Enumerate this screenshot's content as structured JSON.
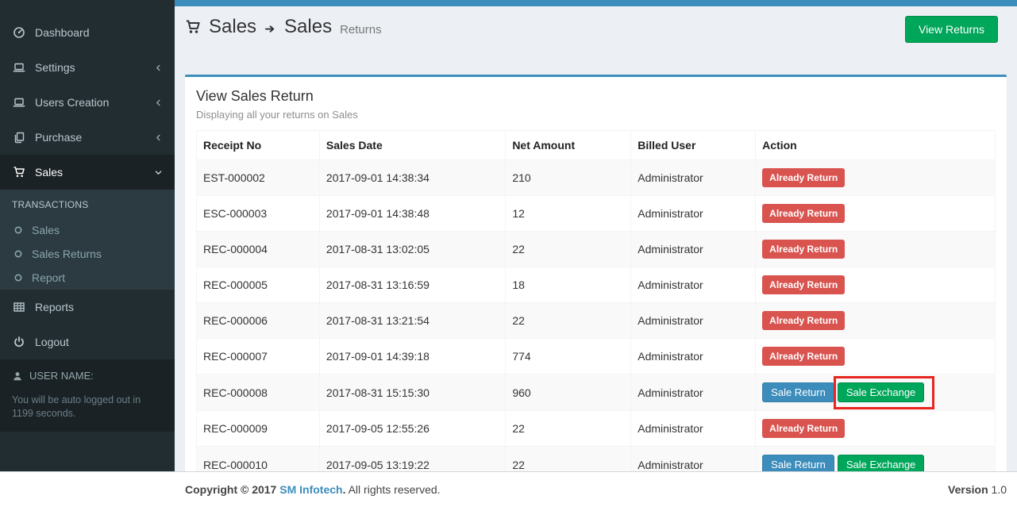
{
  "sidebar": {
    "items": [
      {
        "label": "Dashboard"
      },
      {
        "label": "Settings"
      },
      {
        "label": "Users Creation"
      },
      {
        "label": "Purchase"
      },
      {
        "label": "Sales"
      }
    ],
    "submenu": {
      "header": "TRANSACTIONS",
      "items": [
        {
          "label": "Sales"
        },
        {
          "label": "Sales Returns"
        },
        {
          "label": "Report"
        }
      ]
    },
    "items_bottom": [
      {
        "label": "Reports"
      },
      {
        "label": "Logout"
      }
    ],
    "user_panel": {
      "label": "USER NAME:",
      "note_line1": "You will be auto logged out in",
      "note_line2": "1199 seconds."
    }
  },
  "header": {
    "breadcrumb": {
      "primary": "Sales",
      "secondary": "Sales",
      "secondary_small": "Returns"
    },
    "view_returns_button": "View Returns"
  },
  "panel": {
    "title": "View Sales Return",
    "subtitle": "Displaying all your returns on Sales"
  },
  "action_labels": {
    "already_return": "Already Return",
    "sale_return": "Sale Return",
    "sale_exchange": "Sale Exchange"
  },
  "table": {
    "columns": [
      "Receipt No",
      "Sales Date",
      "Net Amount",
      "Billed User",
      "Action"
    ],
    "rows": [
      {
        "receipt_no": "EST-000002",
        "sales_date": "2017-09-01 14:38:34",
        "net_amount": "210",
        "billed_user": "Administrator",
        "actions": [
          {
            "type": "already_return"
          }
        ]
      },
      {
        "receipt_no": "ESC-000003",
        "sales_date": "2017-09-01 14:38:48",
        "net_amount": "12",
        "billed_user": "Administrator",
        "actions": [
          {
            "type": "already_return"
          }
        ]
      },
      {
        "receipt_no": "REC-000004",
        "sales_date": "2017-08-31 13:02:05",
        "net_amount": "22",
        "billed_user": "Administrator",
        "actions": [
          {
            "type": "already_return"
          }
        ]
      },
      {
        "receipt_no": "REC-000005",
        "sales_date": "2017-08-31 13:16:59",
        "net_amount": "18",
        "billed_user": "Administrator",
        "actions": [
          {
            "type": "already_return"
          }
        ]
      },
      {
        "receipt_no": "REC-000006",
        "sales_date": "2017-08-31 13:21:54",
        "net_amount": "22",
        "billed_user": "Administrator",
        "actions": [
          {
            "type": "already_return"
          }
        ]
      },
      {
        "receipt_no": "REC-000007",
        "sales_date": "2017-09-01 14:39:18",
        "net_amount": "774",
        "billed_user": "Administrator",
        "actions": [
          {
            "type": "already_return"
          }
        ]
      },
      {
        "receipt_no": "REC-000008",
        "sales_date": "2017-08-31 15:15:30",
        "net_amount": "960",
        "billed_user": "Administrator",
        "actions": [
          {
            "type": "sale_return"
          },
          {
            "type": "sale_exchange",
            "highlighted": true
          }
        ]
      },
      {
        "receipt_no": "REC-000009",
        "sales_date": "2017-09-05 12:55:26",
        "net_amount": "22",
        "billed_user": "Administrator",
        "actions": [
          {
            "type": "already_return"
          }
        ]
      },
      {
        "receipt_no": "REC-000010",
        "sales_date": "2017-09-05 13:19:22",
        "net_amount": "22",
        "billed_user": "Administrator",
        "actions": [
          {
            "type": "sale_return"
          },
          {
            "type": "sale_exchange"
          }
        ]
      }
    ]
  },
  "footer": {
    "copyright_bold": "Copyright © 2017",
    "company_link": "SM Infotech",
    "copyright_suffix": ".",
    "rights_text": "All rights reserved.",
    "version_label": "Version",
    "version_value": "1.0"
  },
  "colors": {
    "accent_blue": "#3c8dbc",
    "success_green": "#00a65a",
    "danger_red": "#d9534f",
    "highlight_red": "#e8241f",
    "sidebar_bg": "#222d32",
    "sidebar_active_bg": "#1a2226",
    "submenu_bg": "#2c3b41",
    "content_bg": "#ecf0f5"
  }
}
